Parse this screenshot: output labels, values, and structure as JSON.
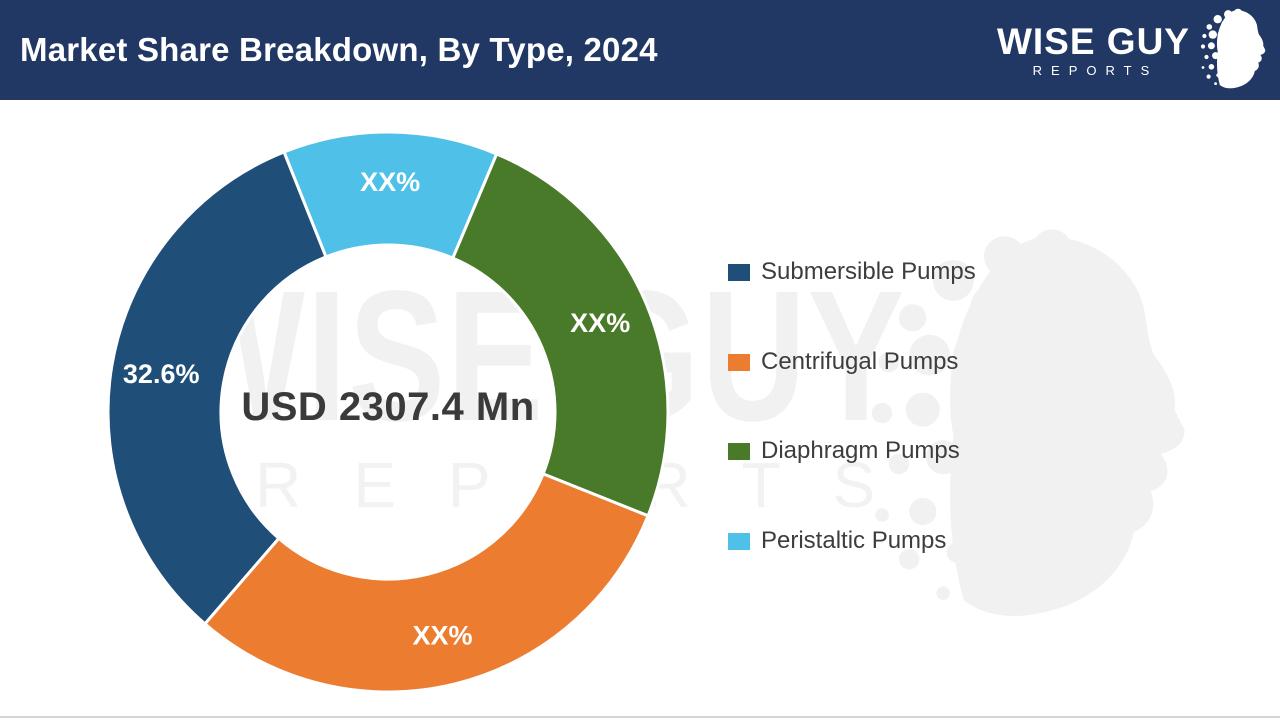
{
  "header": {
    "title": "Market Share Breakdown, By Type, 2024",
    "bg_color": "#213764",
    "logo": {
      "line1": "WISE GUY",
      "line2": "REPORTS"
    }
  },
  "watermark": {
    "line1": "WISE GUY",
    "line2": "REPORTS"
  },
  "chart_data": {
    "type": "pie",
    "donut": true,
    "title": "Market Share Breakdown, By Type, 2024",
    "center_label": "USD 2307.4 Mn",
    "legend_position": "right",
    "segments": [
      {
        "name": "Submersible Pumps",
        "label": "32.6%",
        "value_pct": 32.6,
        "color": "#1f4e79"
      },
      {
        "name": "Centrifugal Pumps",
        "label": "XX%",
        "value_pct": 30.3,
        "color": "#ec7c30"
      },
      {
        "name": "Diaphragm Pumps",
        "label": "XX%",
        "value_pct": 24.7,
        "color": "#497a29"
      },
      {
        "name": "Peristaltic Pumps",
        "label": "XX%",
        "value_pct": 12.4,
        "color": "#4fc0e8"
      }
    ],
    "draw": {
      "start_angle_deg": -21.8,
      "clockwise_order": [
        "Peristaltic Pumps",
        "Diaphragm Pumps",
        "Centrifugal Pumps",
        "Submersible Pumps"
      ]
    }
  }
}
